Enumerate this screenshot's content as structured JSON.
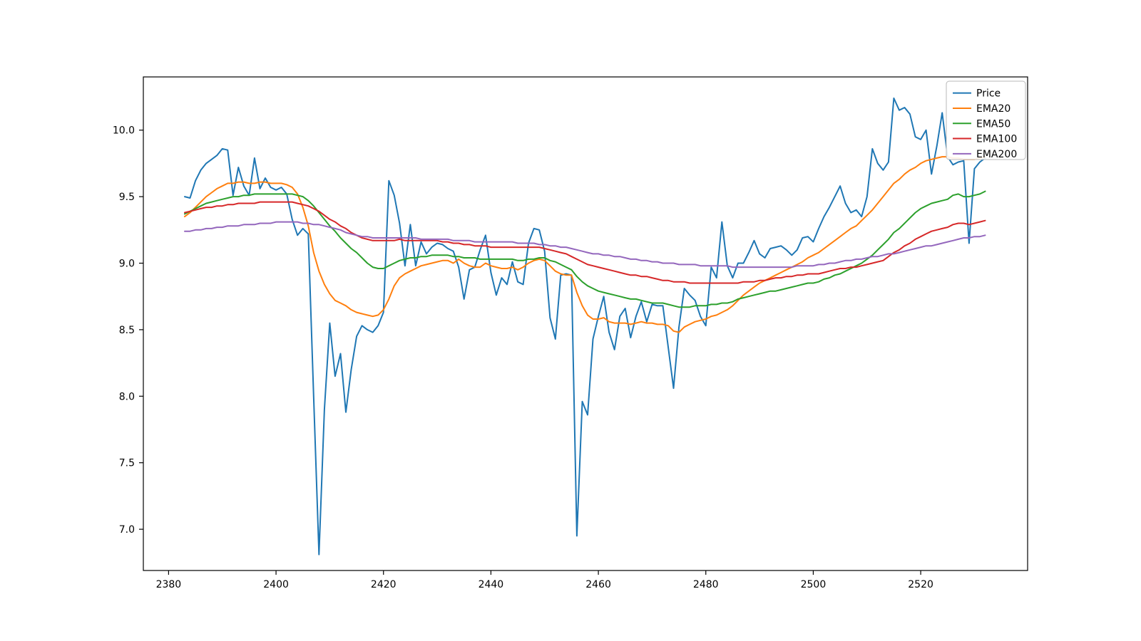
{
  "figure": {
    "background_color": "#ffffff",
    "axes_facecolor": "#ffffff",
    "spine_color": "#000000",
    "grid": false
  },
  "chart_data": {
    "type": "line",
    "title": "",
    "xlabel": "",
    "ylabel": "",
    "xlim": [
      2375.3,
      2539.9
    ],
    "ylim": [
      6.69,
      10.4
    ],
    "x_ticks": [
      2380,
      2400,
      2420,
      2440,
      2460,
      2480,
      2500,
      2520
    ],
    "y_ticks": [
      7.0,
      7.5,
      8.0,
      8.5,
      9.0,
      9.5,
      10.0
    ],
    "grid": false,
    "legend": {
      "position": "upper right",
      "border_color": "#b9b9b9",
      "background_color": "#ffffff",
      "entries": [
        "Price",
        "EMA20",
        "EMA50",
        "EMA100",
        "EMA200"
      ]
    },
    "x_start": 2383,
    "x_step": 1,
    "series": [
      {
        "name": "Price",
        "color": "#1f77b4",
        "values": [
          9.5,
          9.49,
          9.62,
          9.7,
          9.75,
          9.78,
          9.81,
          9.86,
          9.85,
          9.51,
          9.72,
          9.58,
          9.51,
          9.79,
          9.56,
          9.64,
          9.57,
          9.55,
          9.57,
          9.52,
          9.33,
          9.21,
          9.26,
          9.22,
          8.0,
          6.81,
          7.9,
          8.55,
          8.15,
          8.32,
          7.88,
          8.2,
          8.45,
          8.53,
          8.5,
          8.48,
          8.53,
          8.63,
          9.62,
          9.51,
          9.3,
          8.98,
          9.29,
          8.98,
          9.16,
          9.07,
          9.12,
          9.15,
          9.14,
          9.11,
          9.09,
          8.97,
          8.73,
          8.95,
          8.97,
          9.1,
          9.21,
          8.93,
          8.76,
          8.89,
          8.84,
          9.01,
          8.86,
          8.84,
          9.15,
          9.26,
          9.25,
          9.09,
          8.59,
          8.43,
          8.91,
          8.92,
          8.91,
          6.95,
          7.96,
          7.86,
          8.43,
          8.6,
          8.75,
          8.48,
          8.35,
          8.6,
          8.66,
          8.44,
          8.6,
          8.71,
          8.56,
          8.69,
          8.68,
          8.68,
          8.37,
          8.06,
          8.52,
          8.81,
          8.76,
          8.72,
          8.6,
          8.53,
          8.97,
          8.89,
          9.31,
          8.98,
          8.89,
          9.0,
          9.0,
          9.08,
          9.17,
          9.07,
          9.04,
          9.11,
          9.12,
          9.13,
          9.1,
          9.06,
          9.1,
          9.19,
          9.2,
          9.16,
          9.26,
          9.35,
          9.42,
          9.5,
          9.58,
          9.45,
          9.38,
          9.4,
          9.35,
          9.5,
          9.86,
          9.75,
          9.7,
          9.76,
          10.24,
          10.15,
          10.17,
          10.12,
          9.95,
          9.93,
          10.0,
          9.67,
          9.88,
          10.13,
          9.8,
          9.74,
          9.76,
          9.77,
          9.15,
          9.71,
          9.76,
          9.79
        ]
      },
      {
        "name": "EMA20",
        "color": "#ff7f0e",
        "values": [
          9.35,
          9.38,
          9.42,
          9.46,
          9.5,
          9.53,
          9.56,
          9.58,
          9.6,
          9.6,
          9.61,
          9.61,
          9.6,
          9.6,
          9.61,
          9.61,
          9.6,
          9.6,
          9.6,
          9.59,
          9.57,
          9.52,
          9.42,
          9.28,
          9.08,
          8.94,
          8.84,
          8.77,
          8.72,
          8.7,
          8.68,
          8.65,
          8.63,
          8.62,
          8.61,
          8.6,
          8.61,
          8.65,
          8.73,
          8.83,
          8.89,
          8.92,
          8.94,
          8.96,
          8.98,
          8.99,
          9.0,
          9.01,
          9.02,
          9.02,
          9.0,
          9.03,
          9.0,
          8.98,
          8.97,
          8.97,
          9.0,
          8.98,
          8.97,
          8.96,
          8.96,
          8.97,
          8.95,
          8.97,
          9.0,
          9.02,
          9.03,
          9.02,
          8.98,
          8.94,
          8.92,
          8.91,
          8.91,
          8.78,
          8.68,
          8.61,
          8.58,
          8.58,
          8.59,
          8.56,
          8.55,
          8.55,
          8.55,
          8.54,
          8.55,
          8.56,
          8.55,
          8.55,
          8.54,
          8.54,
          8.53,
          8.49,
          8.48,
          8.52,
          8.54,
          8.56,
          8.57,
          8.58,
          8.6,
          8.61,
          8.63,
          8.65,
          8.68,
          8.72,
          8.76,
          8.79,
          8.82,
          8.85,
          8.87,
          8.89,
          8.91,
          8.93,
          8.95,
          8.97,
          8.99,
          9.01,
          9.04,
          9.06,
          9.08,
          9.11,
          9.14,
          9.17,
          9.2,
          9.23,
          9.26,
          9.28,
          9.32,
          9.36,
          9.4,
          9.45,
          9.5,
          9.55,
          9.6,
          9.63,
          9.67,
          9.7,
          9.72,
          9.75,
          9.77,
          9.78,
          9.79,
          9.8,
          9.8,
          9.79,
          9.79,
          9.78,
          9.78,
          9.78,
          9.79,
          9.8
        ]
      },
      {
        "name": "EMA50",
        "color": "#2ca02c",
        "values": [
          9.37,
          9.39,
          9.41,
          9.43,
          9.45,
          9.46,
          9.47,
          9.48,
          9.49,
          9.5,
          9.5,
          9.51,
          9.51,
          9.52,
          9.52,
          9.52,
          9.52,
          9.52,
          9.52,
          9.52,
          9.52,
          9.51,
          9.5,
          9.47,
          9.43,
          9.38,
          9.33,
          9.28,
          9.24,
          9.19,
          9.15,
          9.11,
          9.08,
          9.04,
          9.0,
          8.97,
          8.96,
          8.96,
          8.98,
          9.0,
          9.02,
          9.03,
          9.04,
          9.04,
          9.05,
          9.05,
          9.06,
          9.06,
          9.06,
          9.06,
          9.05,
          9.05,
          9.04,
          9.04,
          9.04,
          9.03,
          9.03,
          9.03,
          9.03,
          9.03,
          9.03,
          9.03,
          9.02,
          9.02,
          9.03,
          9.03,
          9.04,
          9.04,
          9.02,
          9.01,
          8.99,
          8.97,
          8.95,
          8.9,
          8.86,
          8.83,
          8.81,
          8.79,
          8.78,
          8.77,
          8.76,
          8.75,
          8.74,
          8.73,
          8.73,
          8.72,
          8.71,
          8.7,
          8.7,
          8.7,
          8.69,
          8.68,
          8.67,
          8.67,
          8.67,
          8.68,
          8.68,
          8.68,
          8.69,
          8.69,
          8.7,
          8.7,
          8.71,
          8.73,
          8.74,
          8.75,
          8.76,
          8.77,
          8.78,
          8.79,
          8.79,
          8.8,
          8.81,
          8.82,
          8.83,
          8.84,
          8.85,
          8.85,
          8.86,
          8.88,
          8.89,
          8.91,
          8.92,
          8.94,
          8.96,
          8.98,
          9.0,
          9.03,
          9.06,
          9.1,
          9.14,
          9.18,
          9.23,
          9.26,
          9.3,
          9.34,
          9.38,
          9.41,
          9.43,
          9.45,
          9.46,
          9.47,
          9.48,
          9.51,
          9.52,
          9.5,
          9.5,
          9.51,
          9.52,
          9.54
        ]
      },
      {
        "name": "EMA100",
        "color": "#d62728",
        "values": [
          9.38,
          9.39,
          9.4,
          9.41,
          9.42,
          9.42,
          9.43,
          9.43,
          9.44,
          9.44,
          9.45,
          9.45,
          9.45,
          9.45,
          9.46,
          9.46,
          9.46,
          9.46,
          9.46,
          9.46,
          9.46,
          9.45,
          9.44,
          9.43,
          9.41,
          9.39,
          9.36,
          9.33,
          9.31,
          9.28,
          9.26,
          9.23,
          9.21,
          9.19,
          9.18,
          9.17,
          9.17,
          9.17,
          9.17,
          9.17,
          9.18,
          9.17,
          9.17,
          9.17,
          9.17,
          9.17,
          9.17,
          9.17,
          9.16,
          9.16,
          9.15,
          9.15,
          9.14,
          9.14,
          9.13,
          9.13,
          9.13,
          9.12,
          9.12,
          9.12,
          9.12,
          9.12,
          9.12,
          9.12,
          9.12,
          9.12,
          9.12,
          9.11,
          9.1,
          9.09,
          9.08,
          9.07,
          9.05,
          9.03,
          9.01,
          8.99,
          8.98,
          8.97,
          8.96,
          8.95,
          8.94,
          8.93,
          8.92,
          8.91,
          8.91,
          8.9,
          8.9,
          8.89,
          8.88,
          8.87,
          8.87,
          8.86,
          8.86,
          8.86,
          8.85,
          8.85,
          8.85,
          8.85,
          8.85,
          8.85,
          8.85,
          8.85,
          8.85,
          8.85,
          8.86,
          8.86,
          8.86,
          8.87,
          8.87,
          8.88,
          8.89,
          8.89,
          8.9,
          8.9,
          8.91,
          8.91,
          8.92,
          8.92,
          8.92,
          8.93,
          8.94,
          8.95,
          8.96,
          8.96,
          8.97,
          8.97,
          8.98,
          8.99,
          9.0,
          9.01,
          9.02,
          9.05,
          9.08,
          9.1,
          9.13,
          9.15,
          9.18,
          9.2,
          9.22,
          9.24,
          9.25,
          9.26,
          9.27,
          9.29,
          9.3,
          9.3,
          9.29,
          9.3,
          9.31,
          9.32
        ]
      },
      {
        "name": "EMA200",
        "color": "#9467bd",
        "values": [
          9.24,
          9.24,
          9.25,
          9.25,
          9.26,
          9.26,
          9.27,
          9.27,
          9.28,
          9.28,
          9.28,
          9.29,
          9.29,
          9.29,
          9.3,
          9.3,
          9.3,
          9.31,
          9.31,
          9.31,
          9.31,
          9.31,
          9.3,
          9.3,
          9.29,
          9.29,
          9.28,
          9.27,
          9.26,
          9.25,
          9.23,
          9.22,
          9.21,
          9.2,
          9.2,
          9.19,
          9.19,
          9.19,
          9.19,
          9.19,
          9.19,
          9.19,
          9.19,
          9.19,
          9.18,
          9.18,
          9.18,
          9.18,
          9.18,
          9.18,
          9.17,
          9.17,
          9.17,
          9.17,
          9.16,
          9.16,
          9.16,
          9.16,
          9.16,
          9.16,
          9.16,
          9.16,
          9.15,
          9.15,
          9.15,
          9.15,
          9.14,
          9.14,
          9.13,
          9.13,
          9.12,
          9.12,
          9.11,
          9.1,
          9.09,
          9.08,
          9.07,
          9.07,
          9.06,
          9.06,
          9.05,
          9.05,
          9.04,
          9.03,
          9.03,
          9.02,
          9.02,
          9.01,
          9.01,
          9.0,
          9.0,
          9.0,
          8.99,
          8.99,
          8.99,
          8.99,
          8.98,
          8.98,
          8.98,
          8.98,
          8.98,
          8.98,
          8.97,
          8.97,
          8.97,
          8.97,
          8.97,
          8.97,
          8.97,
          8.97,
          8.97,
          8.97,
          8.97,
          8.97,
          8.98,
          8.98,
          8.98,
          8.98,
          8.99,
          8.99,
          9.0,
          9.0,
          9.01,
          9.02,
          9.02,
          9.03,
          9.03,
          9.04,
          9.05,
          9.05,
          9.06,
          9.07,
          9.07,
          9.08,
          9.09,
          9.1,
          9.11,
          9.12,
          9.13,
          9.13,
          9.14,
          9.15,
          9.16,
          9.17,
          9.18,
          9.19,
          9.19,
          9.2,
          9.2,
          9.21
        ]
      }
    ]
  }
}
